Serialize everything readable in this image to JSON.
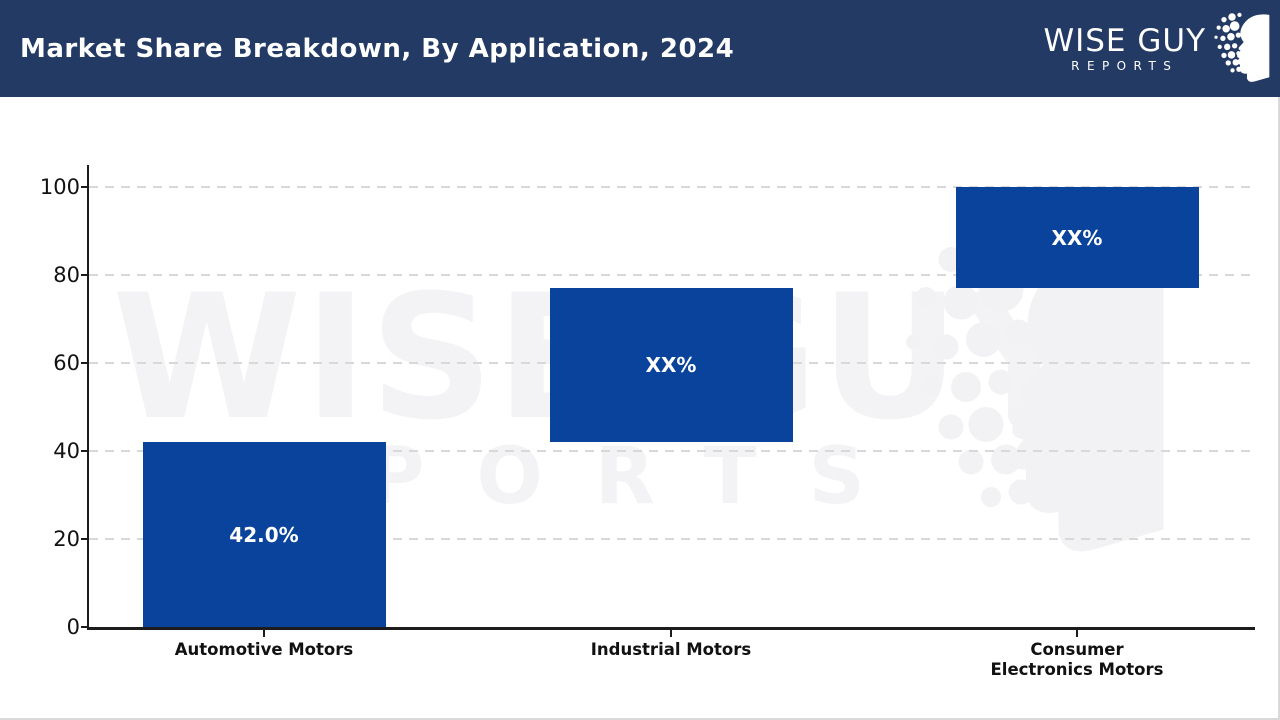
{
  "header": {
    "title": "Market Share Breakdown, By Application, 2024",
    "logo": {
      "name_top": "WISE GUY",
      "name_bottom": "REPORTS"
    }
  },
  "watermark": {
    "line1": "WISE GUY",
    "line2": "REPORTS"
  },
  "chart_data": {
    "type": "bar",
    "subtype": "floating-segment-bars",
    "title": "Market Share Breakdown, By Application, 2024",
    "xlabel": "",
    "ylabel": "",
    "ylim": [
      0,
      100
    ],
    "yticks": [
      0,
      20,
      40,
      60,
      80,
      100
    ],
    "grid": "horizontal-dashed",
    "legend": "none",
    "bar_color": "#0a439c",
    "categories": [
      "Automotive Motors",
      "Industrial Motors",
      "Consumer\nElectronics Motors"
    ],
    "bars": [
      {
        "category": "Automotive Motors",
        "start": 0,
        "end": 42,
        "label": "42.0%"
      },
      {
        "category": "Industrial Motors",
        "start": 42,
        "end": 77,
        "label": "XX%"
      },
      {
        "category": "Consumer\nElectronics Motors",
        "start": 77,
        "end": 100,
        "label": "XX%"
      }
    ]
  }
}
